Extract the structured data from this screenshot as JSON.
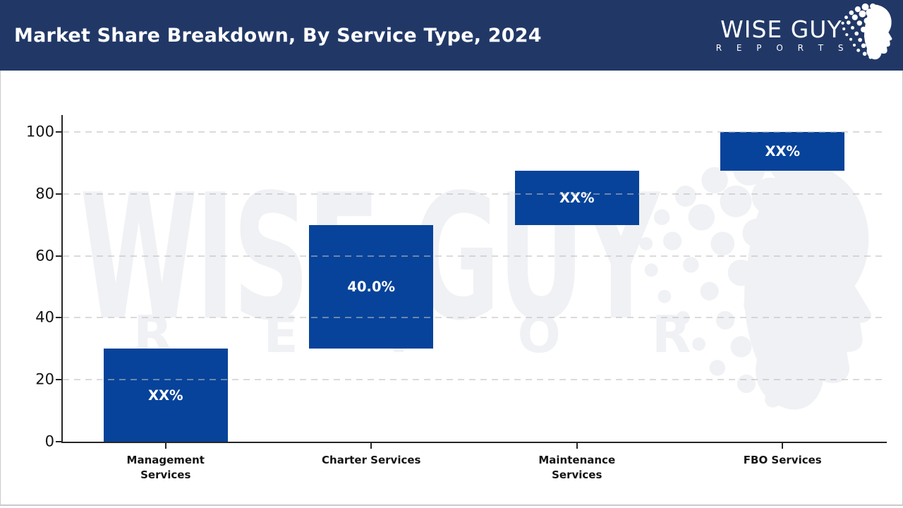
{
  "header": {
    "title": "Market Share Breakdown, By Service Type, 2024",
    "logo_line1": "WISE GUY",
    "logo_line2": "R E P O R T S"
  },
  "watermark": {
    "line1": "WISE GUY",
    "line2": "R E P O R T S"
  },
  "colors": {
    "header_bg": "#213867",
    "bar": "#07439a",
    "grid": "#bdbdbd",
    "axis": "#262626",
    "tick_text": "#141414",
    "watermark": "#f0f1f4",
    "frame": "#c9c9c9"
  },
  "chart_data": {
    "type": "bar",
    "subtype": "floating-waterfall",
    "title": "Market Share Breakdown, By Service Type, 2024",
    "categories": [
      "Management Services",
      "Charter Services",
      "Maintenance Services",
      "FBO Services"
    ],
    "tick_labels": [
      "Management\nServices",
      "Charter Services",
      "Maintenance\nServices",
      "FBO Services"
    ],
    "series": [
      {
        "name": "Market share (%)",
        "segments": [
          {
            "category": "Management Services",
            "start": 0,
            "end": 30,
            "label": "XX%"
          },
          {
            "category": "Charter Services",
            "start": 30,
            "end": 70,
            "label": "40.0%"
          },
          {
            "category": "Maintenance Services",
            "start": 70,
            "end": 87.5,
            "label": "XX%"
          },
          {
            "category": "FBO Services",
            "start": 87.5,
            "end": 100,
            "label": "XX%"
          }
        ]
      }
    ],
    "xlabel": "",
    "ylabel": "",
    "ylim": [
      0,
      105
    ],
    "yticks": [
      0,
      20,
      40,
      60,
      80,
      100
    ],
    "grid": true,
    "grid_style": "dashed",
    "legend": false
  }
}
